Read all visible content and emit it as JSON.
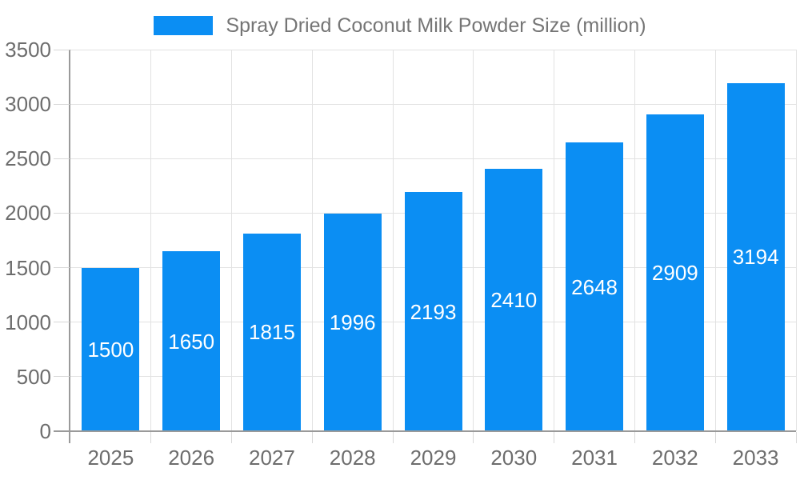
{
  "chart_data": {
    "type": "bar",
    "title": "Spray Dried Coconut Milk Powder Size (million)",
    "categories": [
      "2025",
      "2026",
      "2027",
      "2028",
      "2029",
      "2030",
      "2031",
      "2032",
      "2033"
    ],
    "values": [
      1500,
      1650,
      1815,
      1996,
      2193,
      2410,
      2648,
      2909,
      3194
    ],
    "xlabel": "",
    "ylabel": "",
    "ylim": [
      0,
      3500
    ],
    "yticks": [
      0,
      500,
      1000,
      1500,
      2000,
      2500,
      3000,
      3500
    ],
    "grid": true,
    "legend_position": "top",
    "value_label_position": "inside-center"
  },
  "colors": {
    "bar": "#0b8ef3",
    "grid": "#e2e2e2",
    "tick": "#d8d8d8",
    "axis": "#9a9a9a",
    "label_text": "#6d6d6d",
    "legend_text": "#757575",
    "value_text": "#ffffff",
    "background": "#ffffff"
  }
}
